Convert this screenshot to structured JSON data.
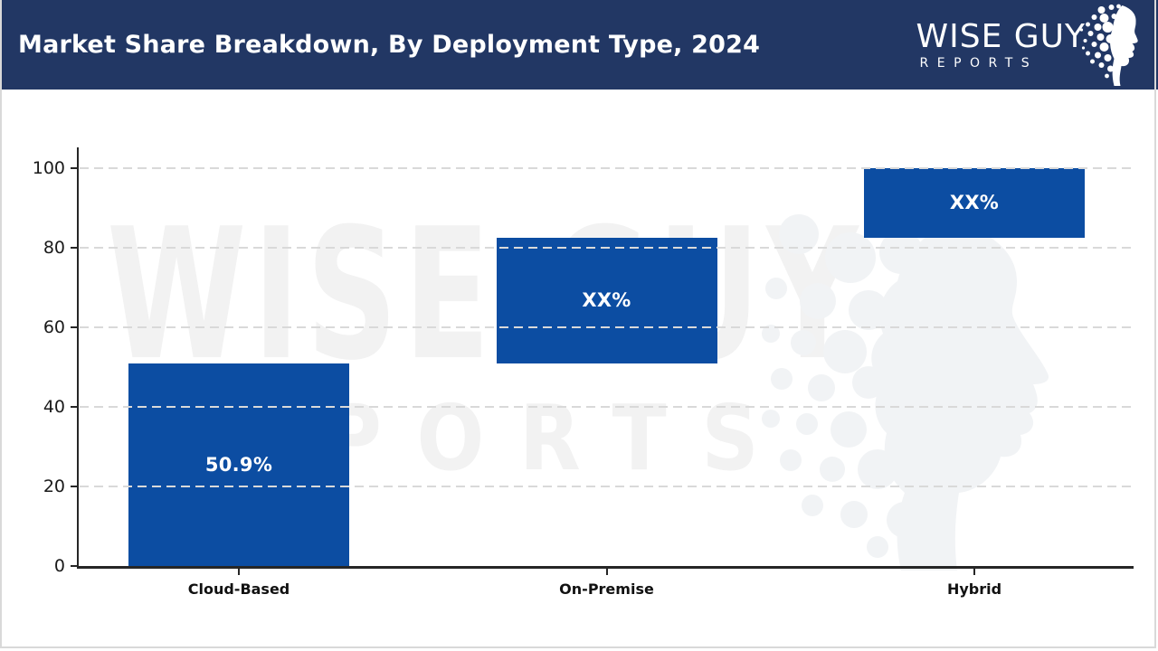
{
  "header": {
    "title": "Market Share Breakdown, By Deployment Type, 2024",
    "bg_color": "#223764",
    "logo": {
      "wordmark": "WISE GUY",
      "subtext": "REPORTS"
    }
  },
  "watermark": {
    "line1": "WISE GUY",
    "line2": "REPORTS"
  },
  "chart_data": {
    "type": "bar",
    "subtype": "waterfall-breakdown",
    "title": "Market Share Breakdown, By Deployment Type, 2024",
    "categories": [
      "Cloud-Based",
      "On-Premise",
      "Hybrid"
    ],
    "series": [
      {
        "name": "Cloud-Based",
        "start": 0,
        "end": 50.9,
        "label": "50.9%"
      },
      {
        "name": "On-Premise",
        "start": 50.9,
        "end": 82.4,
        "label": "XX%"
      },
      {
        "name": "Hybrid",
        "start": 82.4,
        "end": 100,
        "label": "XX%"
      }
    ],
    "xlabel": "",
    "ylabel": "",
    "ylim": [
      0,
      100
    ],
    "yticks": [
      0,
      20,
      40,
      60,
      80,
      100
    ],
    "grid": "horizontal-dashed",
    "grid_color": "#d9d9d9",
    "legend": "none",
    "bar_color": "#0c4da2",
    "bar_label_color": "#ffffff",
    "axis_color": "#262626",
    "tick_label_color": "#1a1a1a"
  }
}
